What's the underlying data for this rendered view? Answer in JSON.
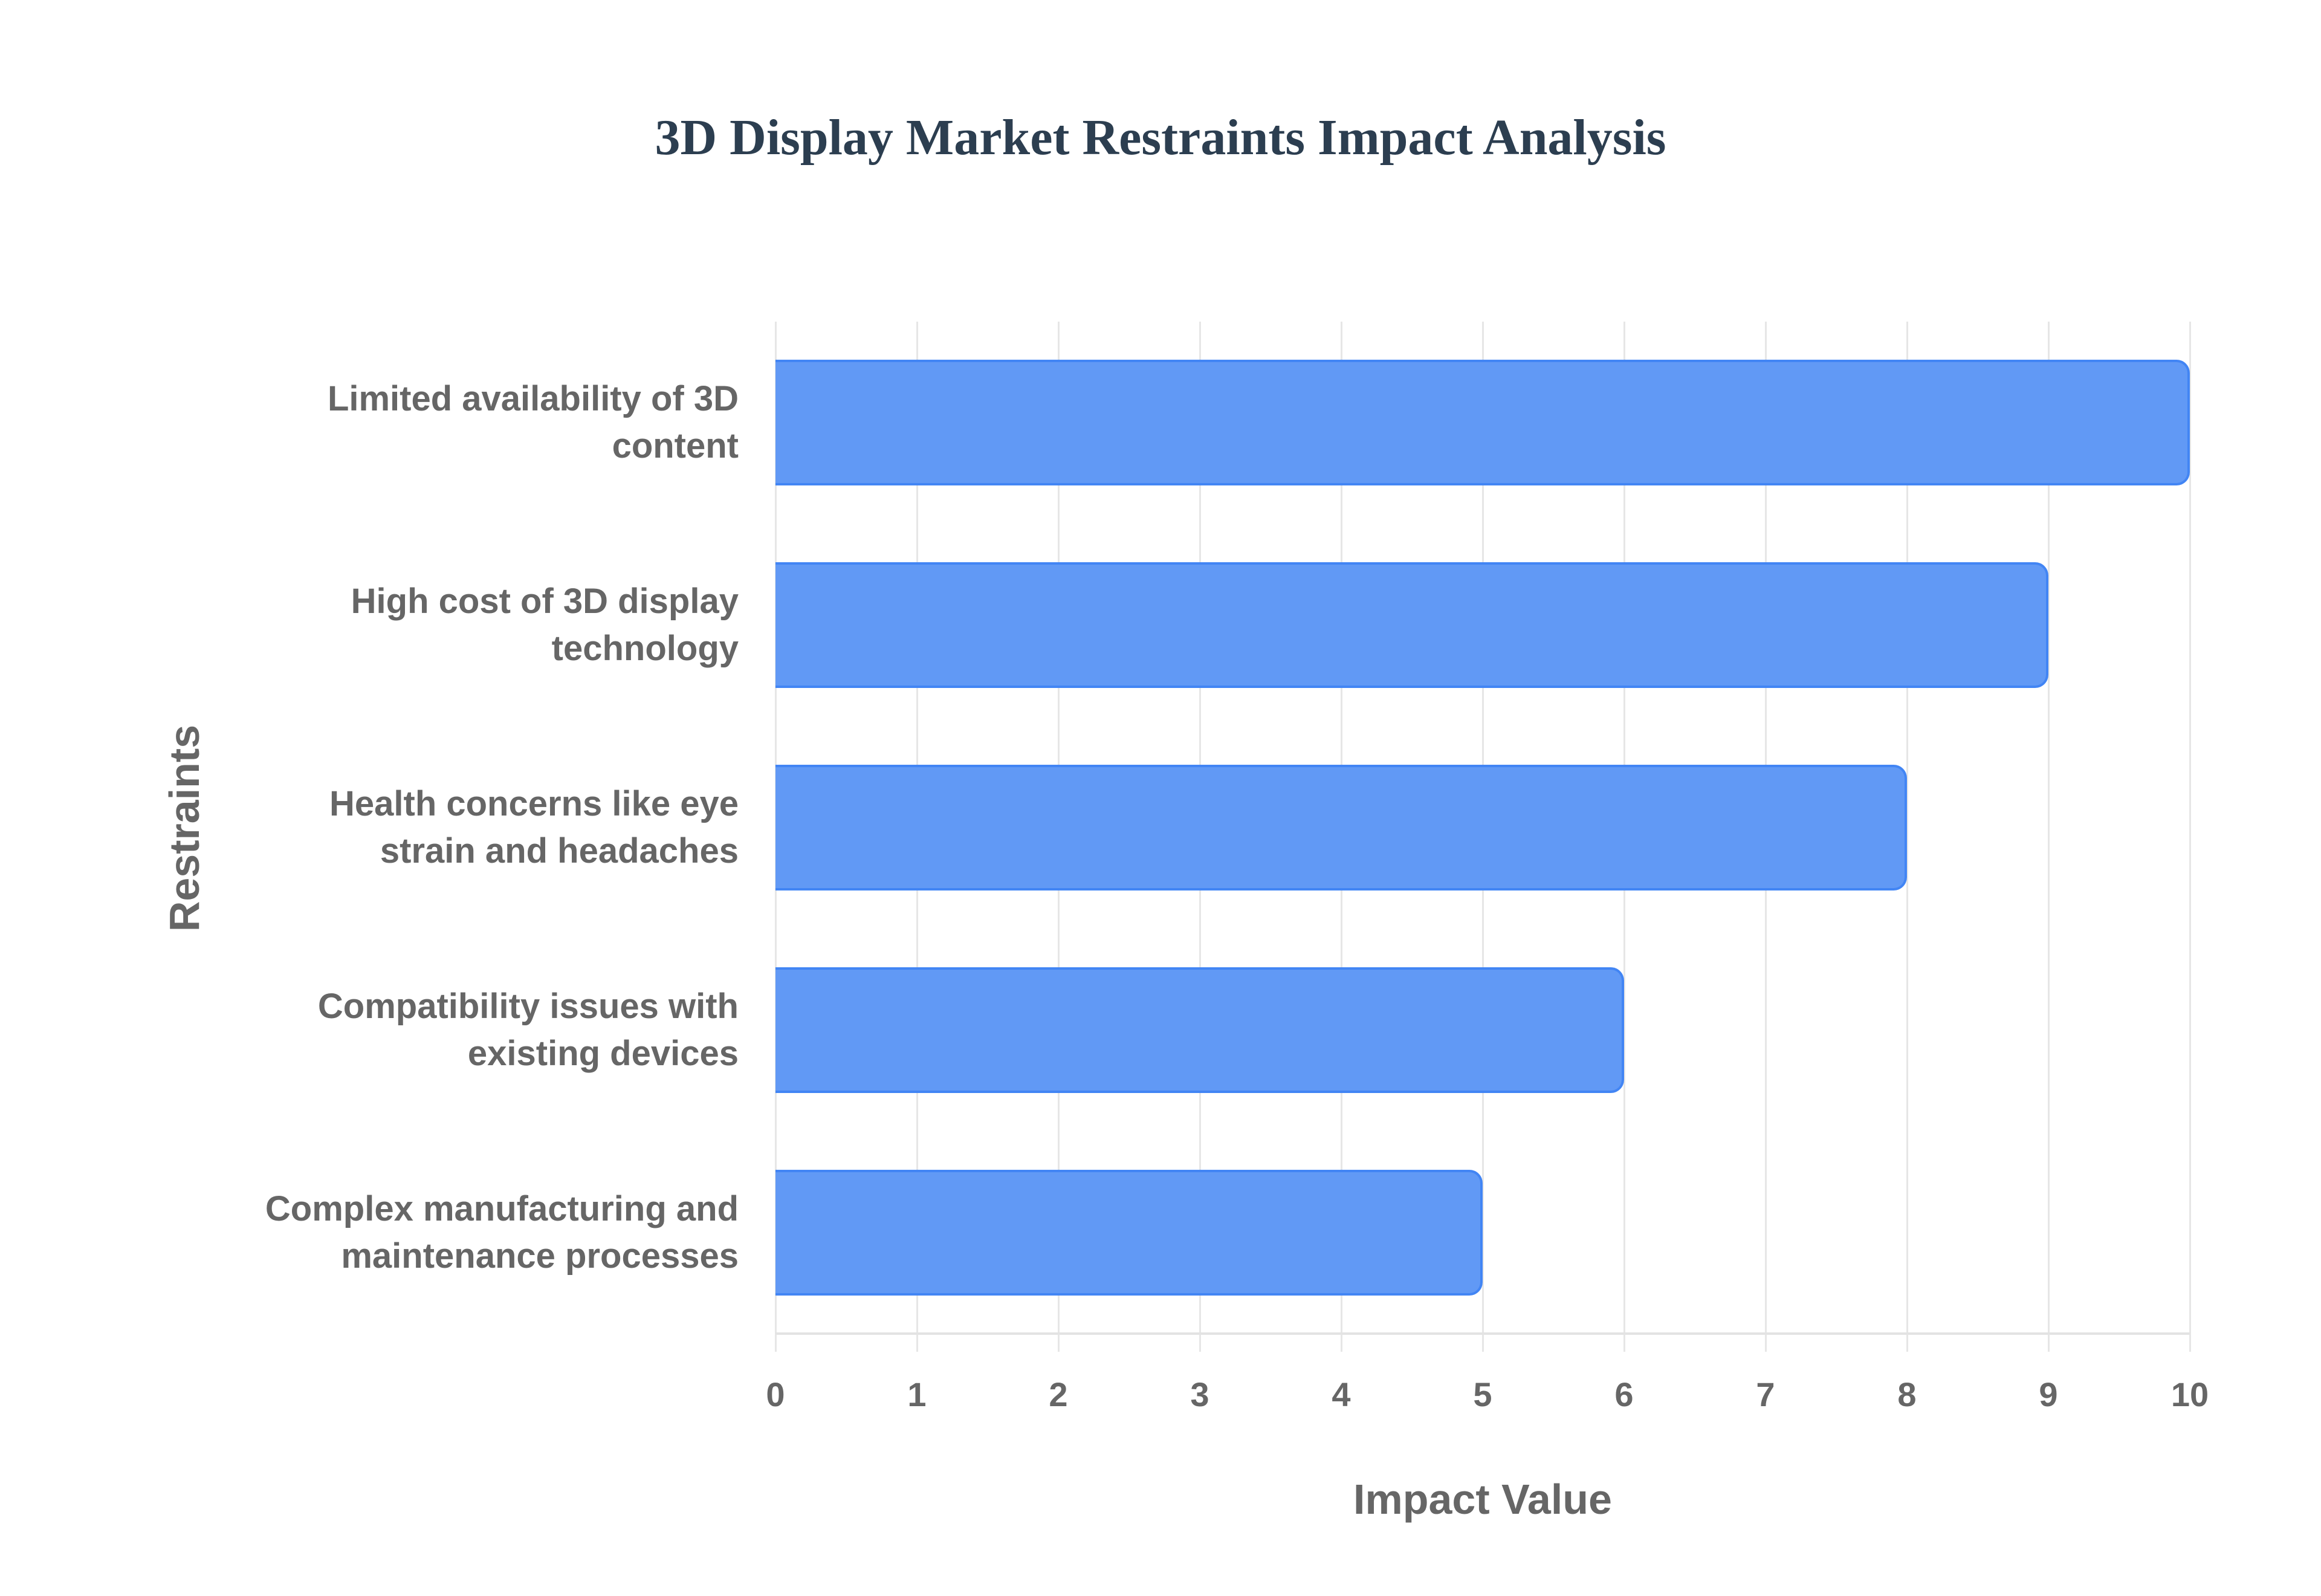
{
  "title": "3D Display Market Restraints Impact Analysis",
  "colors": {
    "bar_fill": "#6199f5",
    "bar_border": "#4285f4",
    "title": "#2c3e50",
    "axis_text": "#666666",
    "grid": "#e6e6e6"
  },
  "axes": {
    "x_title": "Impact Value",
    "y_title": "Restraints",
    "x_ticks": [
      "0",
      "1",
      "2",
      "3",
      "4",
      "5",
      "6",
      "7",
      "8",
      "9",
      "10"
    ]
  },
  "categories": [
    {
      "label_line1": "Limited availability of 3D",
      "label_line2": "content",
      "value": 10
    },
    {
      "label_line1": "High cost of 3D display",
      "label_line2": "technology",
      "value": 9
    },
    {
      "label_line1": "Health concerns like eye",
      "label_line2": "strain and headaches",
      "value": 8
    },
    {
      "label_line1": "Compatibility issues with",
      "label_line2": "existing devices",
      "value": 6
    },
    {
      "label_line1": "Complex manufacturing and",
      "label_line2": "maintenance processes",
      "value": 5
    }
  ],
  "chart_data": {
    "type": "bar",
    "orientation": "horizontal",
    "title": "3D Display Market Restraints Impact Analysis",
    "categories": [
      "Limited availability of 3D content",
      "High cost of 3D display technology",
      "Health concerns like eye strain and headaches",
      "Compatibility issues with existing devices",
      "Complex manufacturing and maintenance processes"
    ],
    "values": [
      10,
      9,
      8,
      6,
      5
    ],
    "xlabel": "Impact Value",
    "ylabel": "Restraints",
    "xlim": [
      0,
      10
    ],
    "x_ticks": [
      0,
      1,
      2,
      3,
      4,
      5,
      6,
      7,
      8,
      9,
      10
    ],
    "grid": {
      "vertical": true,
      "horizontal": false
    },
    "legend": null
  }
}
